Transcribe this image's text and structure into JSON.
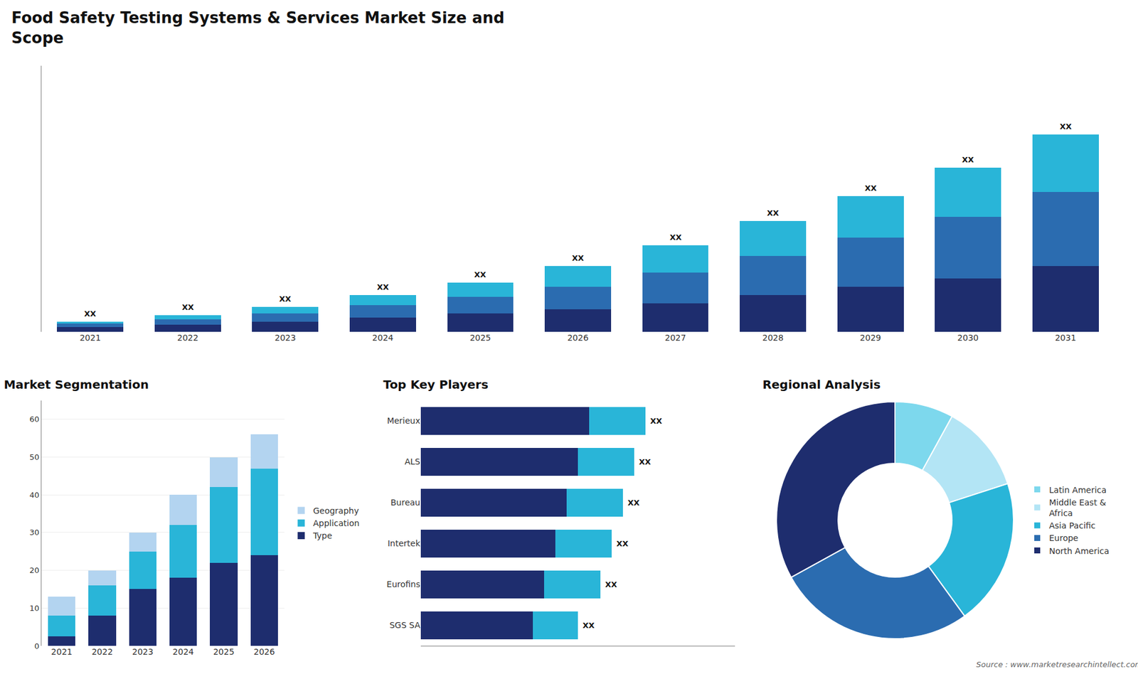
{
  "chart_data": [
    {
      "type": "bar",
      "title": "Food Safety Testing Systems & Services Market Size and\nScope",
      "stacked": true,
      "categories": [
        "2021",
        "2022",
        "2023",
        "2024",
        "2025",
        "2026",
        "2027",
        "2028",
        "2029",
        "2030",
        "2031"
      ],
      "series": [
        {
          "color": "#1e2d6e",
          "values": [
            1.2,
            1.8,
            2.5,
            3.5,
            4.5,
            5.5,
            7.0,
            9.0,
            11.0,
            13.0,
            16.0
          ]
        },
        {
          "color": "#2b6cb0",
          "values": [
            0.8,
            1.2,
            2.0,
            3.0,
            4.0,
            5.5,
            7.5,
            9.5,
            12.0,
            15.0,
            18.0
          ]
        },
        {
          "color": "#29b5d8",
          "values": [
            0.5,
            1.0,
            1.5,
            2.5,
            3.5,
            5.0,
            6.5,
            8.5,
            10.0,
            12.0,
            14.0
          ]
        }
      ],
      "ylim": [
        0,
        64.8
      ],
      "tick_labels": "x",
      "annotations": [
        {
          "category": "2021",
          "text": "XX"
        },
        {
          "category": "2022",
          "text": "XX"
        },
        {
          "category": "2023",
          "text": "XX"
        },
        {
          "category": "2024",
          "text": "XX"
        },
        {
          "category": "2025",
          "text": "XX"
        },
        {
          "category": "2026",
          "text": "XX"
        },
        {
          "category": "2027",
          "text": "XX"
        },
        {
          "category": "2028",
          "text": "XX"
        },
        {
          "category": "2029",
          "text": "XX"
        },
        {
          "category": "2030",
          "text": "XX"
        },
        {
          "category": "2031",
          "text": "XX"
        }
      ]
    },
    {
      "type": "bar",
      "title": "Market Segmentation",
      "stacked": true,
      "categories": [
        "2021",
        "2022",
        "2023",
        "2024",
        "2025",
        "2026"
      ],
      "series": [
        {
          "name": "Type",
          "color": "#1e2d6e",
          "values": [
            2.5,
            8.0,
            15.0,
            18.0,
            22.0,
            24.0
          ]
        },
        {
          "name": "Application",
          "color": "#29b5d8",
          "values": [
            5.5,
            8.0,
            10.0,
            14.0,
            20.0,
            23.0
          ]
        },
        {
          "name": "Geography",
          "color": "#b3d4f0",
          "values": [
            5.0,
            4.0,
            5.0,
            8.0,
            8.0,
            9.0
          ]
        }
      ],
      "ylim": [
        0,
        65
      ],
      "yticks": [
        0,
        10,
        20,
        30,
        40,
        50,
        60
      ],
      "grid": true,
      "legend": "right"
    },
    {
      "type": "bar",
      "title": "Top Key Players",
      "orientation": "horizontal",
      "stacked": true,
      "categories": [
        "Merieux",
        "ALS",
        "Bureau",
        "Intertek",
        "Eurofins",
        "SGS SA"
      ],
      "series": [
        {
          "color": "#1e2d6e",
          "values": [
            7.5,
            7.0,
            6.5,
            6.0,
            5.5,
            5.0
          ]
        },
        {
          "color": "#29b5d8",
          "values": [
            2.5,
            2.5,
            2.5,
            2.5,
            2.5,
            2.0
          ]
        }
      ],
      "xlim": [
        0,
        14
      ],
      "tick_labels": "y",
      "annotations": [
        {
          "category": "Merieux",
          "text": "XX"
        },
        {
          "category": "ALS",
          "text": "XX"
        },
        {
          "category": "Bureau",
          "text": "XX"
        },
        {
          "category": "Intertek",
          "text": "XX"
        },
        {
          "category": "Eurofins",
          "text": "XX"
        },
        {
          "category": "SGS SA",
          "text": "XX"
        }
      ]
    },
    {
      "type": "pie",
      "title": "Regional Analysis",
      "categories": [
        "Latin America",
        "Middle East &\nAfrica",
        "Asia Pacific",
        "Europe",
        "North America"
      ],
      "values": [
        8,
        12,
        20,
        27,
        33
      ],
      "colors": [
        "#7dd8ed",
        "#b3e5f5",
        "#29b5d8",
        "#2b6cb0",
        "#1e2d6e"
      ],
      "legend": "right",
      "annotations": [
        {
          "text": "Source : www.marketresearchintellect.com"
        }
      ]
    }
  ]
}
